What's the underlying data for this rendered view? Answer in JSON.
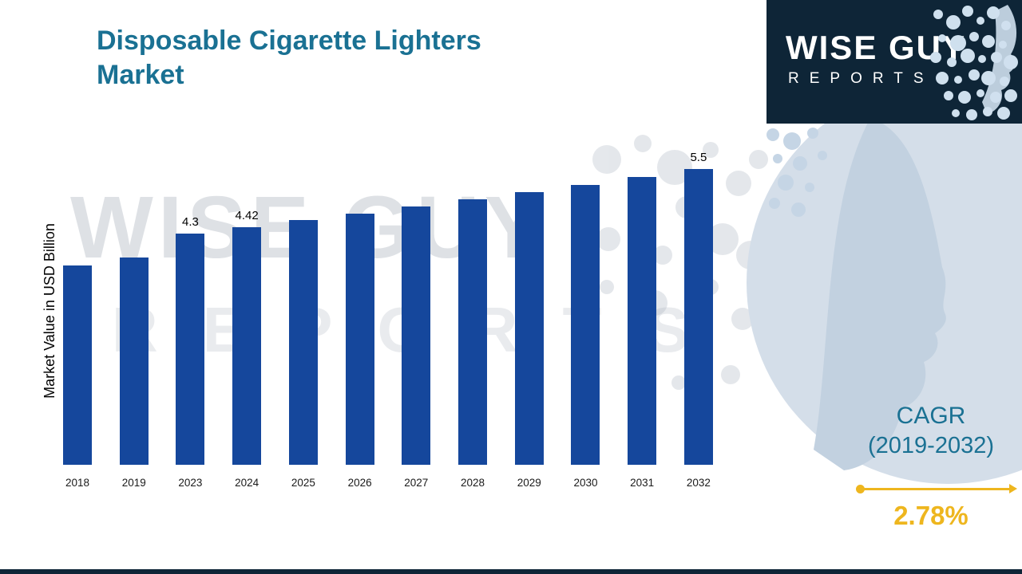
{
  "title": "Disposable Cigarette Lighters Market",
  "chart": {
    "ylabel": "Market Value in USD Billion"
  },
  "logo": {
    "line1": "WISE GUY",
    "line2": "REPORTS"
  },
  "watermark": {
    "line1": "WISE GUY",
    "line2": "REPORTS"
  },
  "cagr": {
    "title": "CAGR",
    "range": "(2019-2032)",
    "value": "2.78%"
  },
  "colors": {
    "bar": "#15479c",
    "navy_panel": "#0e2537",
    "gold": "#eeb61e",
    "teal": "#1a7193",
    "circle": "#d4dee9"
  },
  "chart_data": {
    "type": "bar",
    "title": "Disposable Cigarette Lighters Market",
    "xlabel": "",
    "ylabel": "Market Value in USD Billion",
    "categories": [
      "2018",
      "2019",
      "2023",
      "2024",
      "2025",
      "2026",
      "2027",
      "2028",
      "2029",
      "2030",
      "2031",
      "2032"
    ],
    "values": [
      3.7,
      3.85,
      4.3,
      4.42,
      4.55,
      4.67,
      4.8,
      4.94,
      5.07,
      5.2,
      5.35,
      5.5
    ],
    "data_labels": {
      "2023": "4.3",
      "2024": "4.42",
      "2032": "5.5"
    },
    "ylim": [
      0,
      6
    ],
    "grid": false,
    "legend": false,
    "bar_color": "#15479c"
  }
}
